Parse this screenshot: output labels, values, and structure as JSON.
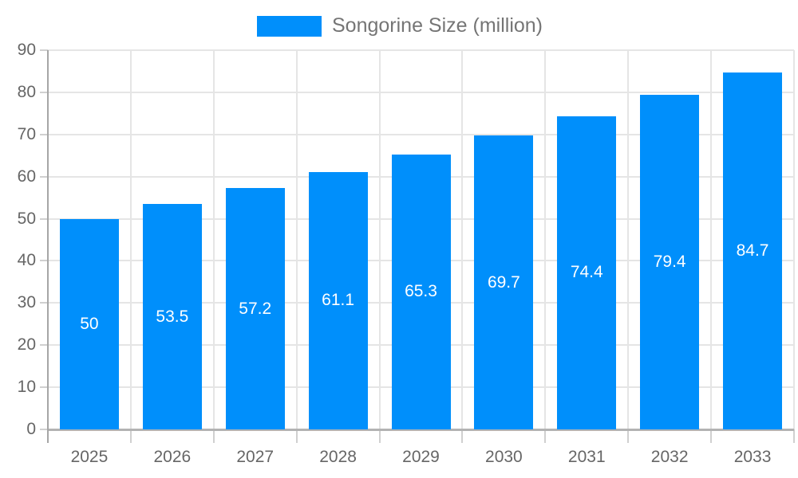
{
  "legend": {
    "label": "Songorine Size (million)"
  },
  "colors": {
    "bar": "#008FFB",
    "grid": "#e5e5e5",
    "axis": "#a6a6a6",
    "baseline": "#b3b3b3",
    "tick": "#d0d0d0",
    "axis_label": "#666666",
    "legend_label": "#757575",
    "value_label": "#ffffff",
    "background": "#ffffff"
  },
  "chart_data": {
    "type": "bar",
    "title": "",
    "series_name": "Songorine Size (million)",
    "categories": [
      "2025",
      "2026",
      "2027",
      "2028",
      "2029",
      "2030",
      "2031",
      "2032",
      "2033"
    ],
    "values": [
      50,
      53.5,
      57.2,
      61.1,
      65.3,
      69.7,
      74.4,
      79.4,
      84.7
    ],
    "value_labels": [
      "50",
      "53.5",
      "57.2",
      "61.1",
      "65.3",
      "69.7",
      "74.4",
      "79.4",
      "84.7"
    ],
    "xlabel": "",
    "ylabel": "",
    "ylim": [
      0,
      90
    ],
    "ytick_step": 10,
    "y_tick_labels": [
      "0",
      "10",
      "20",
      "30",
      "40",
      "50",
      "60",
      "70",
      "80",
      "90"
    ],
    "grid": true,
    "legend_position": "top"
  }
}
